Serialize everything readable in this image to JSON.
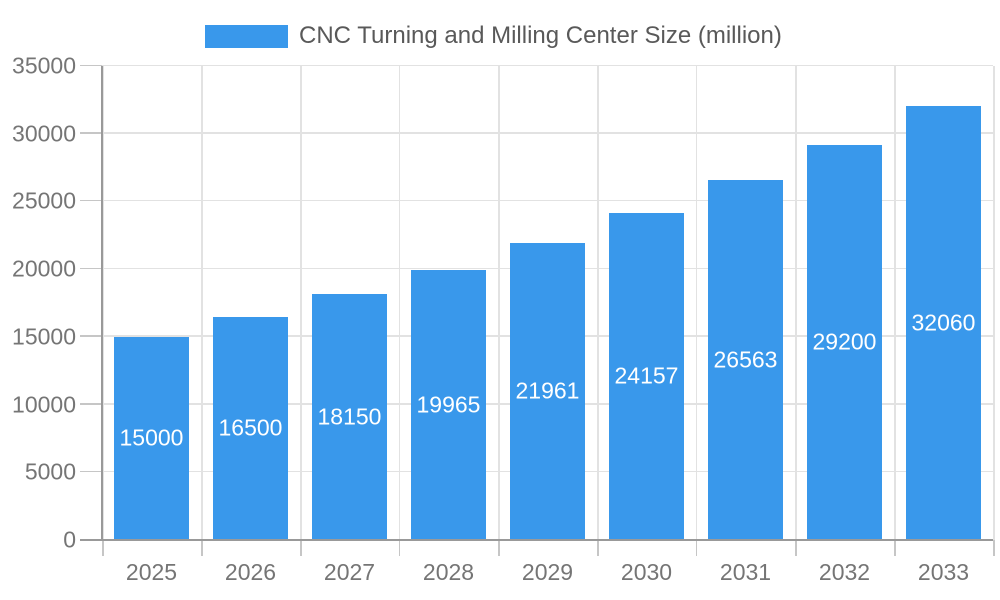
{
  "legend": {
    "label": "CNC Turning and Milling Center Size (million)"
  },
  "chart_data": {
    "type": "bar",
    "title": "CNC Turning and Milling Center Size (million)",
    "categories": [
      "2025",
      "2026",
      "2027",
      "2028",
      "2029",
      "2030",
      "2031",
      "2032",
      "2033"
    ],
    "values": [
      15000,
      16500,
      18150,
      19965,
      21961,
      24157,
      26563,
      29200,
      32060
    ],
    "series": [
      {
        "name": "CNC Turning and Milling Center Size (million)",
        "values": [
          15000,
          16500,
          18150,
          19965,
          21961,
          24157,
          26563,
          29200,
          32060
        ]
      }
    ],
    "xlabel": "",
    "ylabel": "",
    "ylim": [
      0,
      35000
    ],
    "yticks": [
      0,
      5000,
      10000,
      15000,
      20000,
      25000,
      30000,
      35000
    ],
    "grid": true,
    "legend_position": "top",
    "bar_color": "#3998eb",
    "value_label_color": "#ffffff",
    "axis_label_color": "#757575",
    "title_color": "#595959",
    "gridline_color": "#e2e2e2",
    "axis_line_color": "#999999"
  }
}
